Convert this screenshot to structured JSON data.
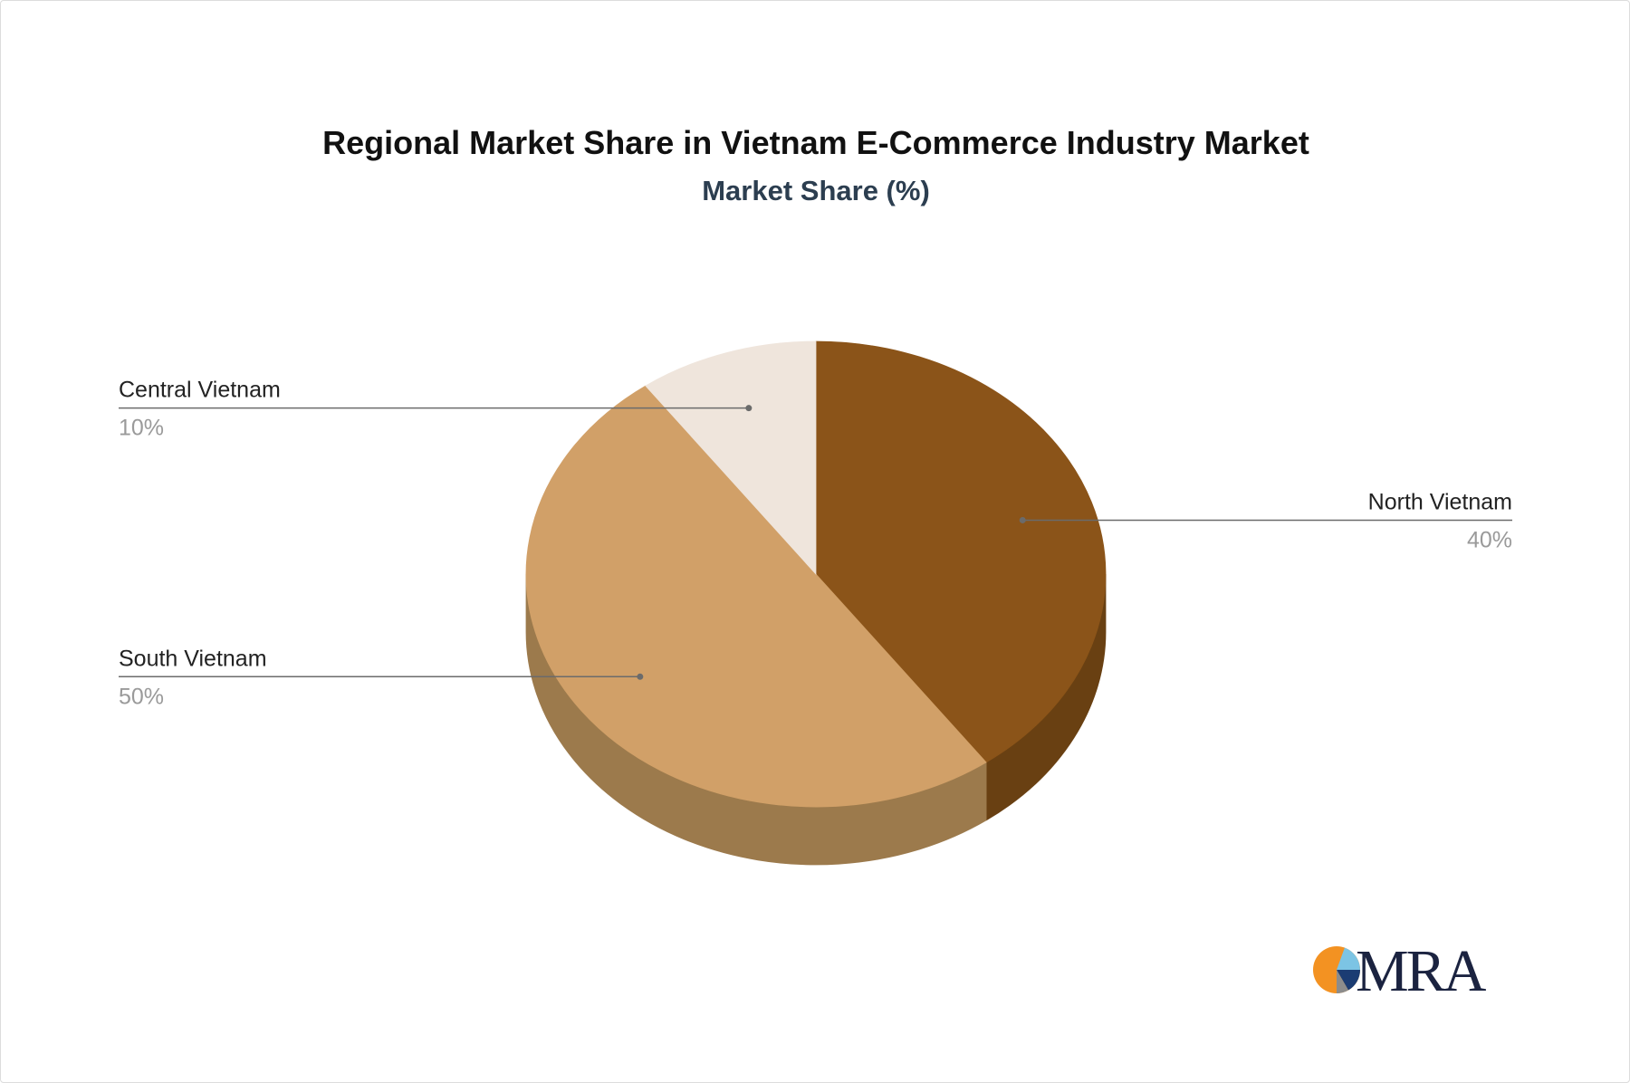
{
  "chart_data": {
    "type": "pie",
    "three_d": true,
    "title": "Regional Market Share in Vietnam E-Commerce Industry Market",
    "subtitle": "Market Share (%)",
    "slices": [
      {
        "label": "North Vietnam",
        "value": 40,
        "value_label": "40%",
        "color": "#8B5419",
        "side_color": "#694012"
      },
      {
        "label": "South Vietnam",
        "value": 50,
        "value_label": "50%",
        "color": "#D1A068",
        "side_color": "#9C7A4C"
      },
      {
        "label": "Central Vietnam",
        "value": 10,
        "value_label": "10%",
        "color": "#EFE5DC",
        "side_color": "#C9BDB2"
      }
    ]
  },
  "logo": {
    "text": "MRA",
    "colors": {
      "orange": "#F39222",
      "light_blue": "#7CC4E4",
      "navy": "#1B3C73",
      "gray": "#8C8C8C",
      "text": "#1B2340"
    }
  }
}
